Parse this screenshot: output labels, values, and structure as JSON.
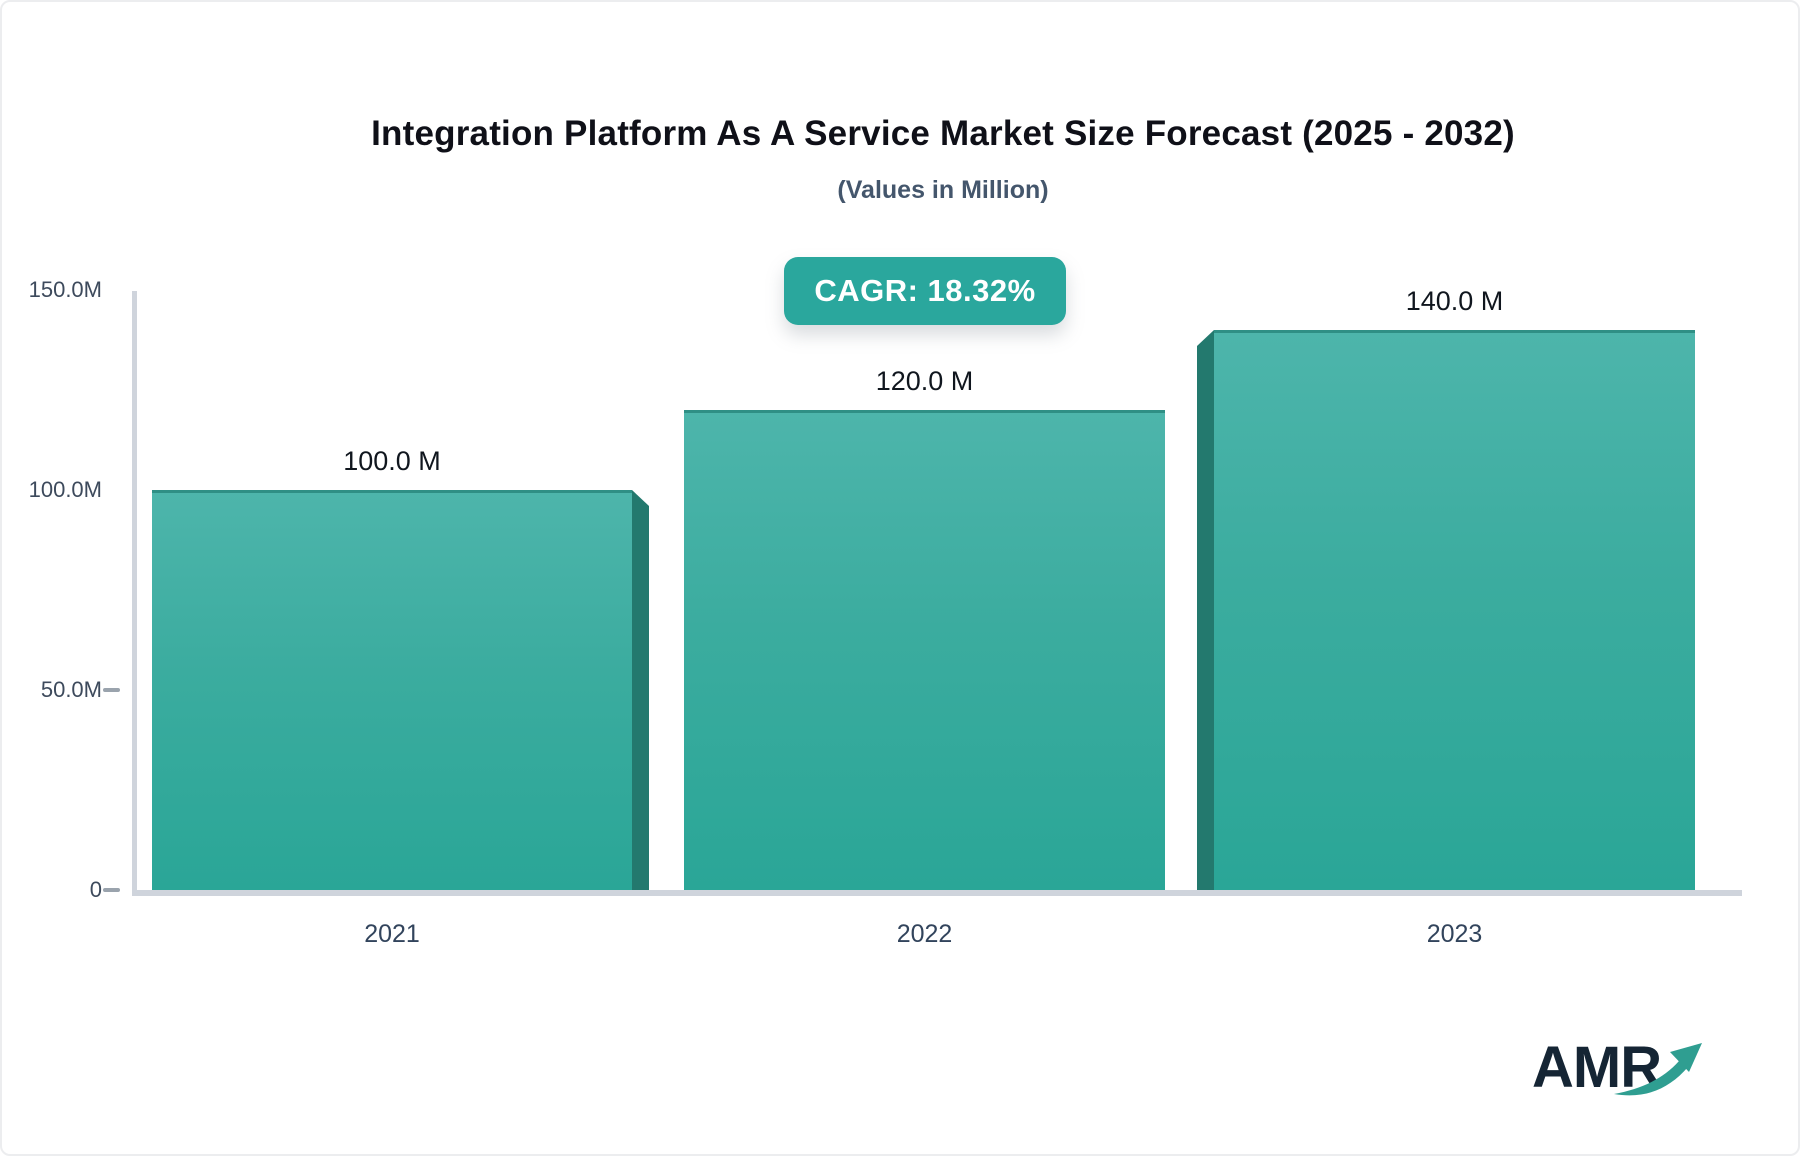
{
  "header": {
    "title": "Integration Platform As A Service Market Size Forecast (2025 - 2032)",
    "subtitle": "(Values in Million)"
  },
  "badge": {
    "label": "CAGR: 18.32%",
    "cagr": "18.32%",
    "color": "#2aa79d"
  },
  "chart_data": {
    "type": "bar",
    "title": "Integration Platform As A Service Market Size Forecast (2025 - 2032)",
    "subtitle": "(Values in Million)",
    "unit": "Million",
    "categories": [
      "2021",
      "2022",
      "2023"
    ],
    "values": [
      100.0,
      120.0,
      140.0
    ],
    "value_labels": [
      "100.0 M",
      "120.0 M",
      "140.0 M"
    ],
    "xlabel": "",
    "ylabel": "",
    "ylim": [
      0,
      150
    ],
    "yticks": [
      {
        "label": "150.0M",
        "value": 150
      },
      {
        "label": "100.0M",
        "value": 100
      },
      {
        "label": "50.0M",
        "value": 50
      },
      {
        "label": "0",
        "value": 0
      }
    ],
    "grid": false,
    "legend": false,
    "colors": {
      "bar_top": "#4db5ab",
      "bar_bottom": "#2aa697",
      "bar_top_edge": "#2f8f85",
      "bar_side_shadow": "#23796e",
      "axis": "#cfd4dc",
      "tick": "#9aa3ad",
      "axis_label": "#3d4a5c",
      "value_label": "#10161e"
    }
  },
  "logo": {
    "text": "AMR",
    "arrow_color": "#2f9e91",
    "text_color": "#152534"
  }
}
